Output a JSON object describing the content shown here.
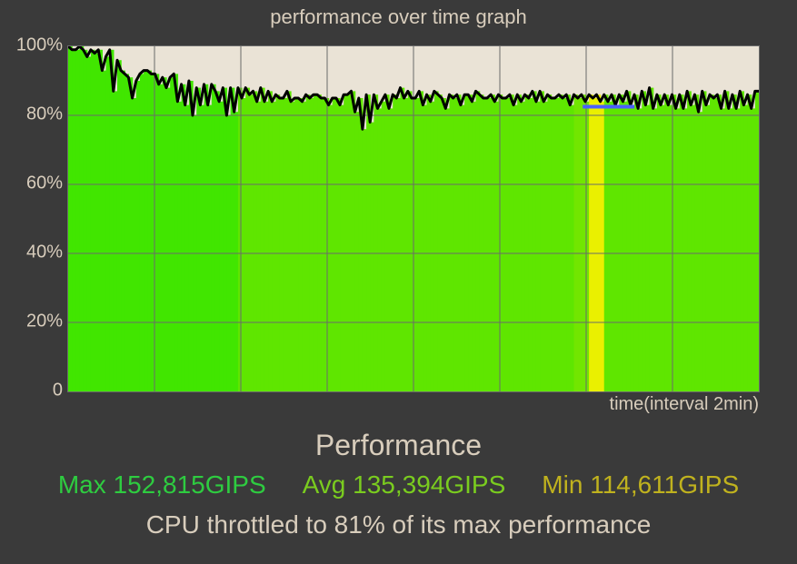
{
  "chart": {
    "type": "area-line",
    "title": "performance over time graph",
    "xaxis_label": "time(interval 2min)",
    "background_color": "#3a3a3a",
    "plot_bg_color": "#eae3d6",
    "grid_color": "#6b6b6b",
    "text_color": "#d8cdbc",
    "line_color": "#000000",
    "line_width": 3,
    "marker_color": "#4a5fff",
    "marker_width": 4,
    "ylim": [
      0,
      100
    ],
    "ytick_step": 20,
    "ytick_labels": [
      "0",
      "20%",
      "40%",
      "60%",
      "80%",
      "100%"
    ],
    "x_divisions": 8,
    "title_fontsize": 22,
    "axis_fontsize": 20,
    "series": [
      100,
      99,
      99,
      100,
      99,
      97,
      99,
      98,
      99,
      93,
      97,
      99,
      87,
      96,
      93,
      92,
      91,
      85,
      90,
      92,
      93,
      93,
      92,
      92,
      89,
      91,
      88,
      91,
      92,
      84,
      89,
      83,
      90,
      80,
      88,
      83,
      89,
      83,
      89,
      87,
      84,
      88,
      80,
      88,
      81,
      88,
      85,
      88,
      86,
      87,
      84,
      88,
      84,
      87,
      84,
      86,
      85,
      85,
      87,
      84,
      85,
      85,
      84,
      86,
      85,
      86,
      86,
      85,
      85,
      83,
      85,
      85,
      83,
      86,
      86,
      87,
      81,
      85,
      76,
      86,
      78,
      86,
      82,
      84,
      86,
      82,
      86,
      85,
      88,
      85,
      87,
      85,
      85,
      87,
      83,
      86,
      84,
      87,
      86,
      85,
      82,
      86,
      85,
      86,
      83,
      86,
      86,
      84,
      87,
      86,
      85,
      85,
      86,
      84,
      86,
      85,
      85,
      86,
      83,
      86,
      84,
      86,
      85,
      87,
      84,
      87,
      84,
      86,
      85,
      85,
      86,
      85,
      86,
      83,
      86,
      85,
      86,
      84,
      86,
      85,
      86,
      84,
      86,
      84,
      86,
      83,
      86,
      84,
      87,
      83,
      86,
      82,
      87,
      83,
      88,
      82,
      86,
      83,
      86,
      83,
      86,
      82,
      86,
      82,
      87,
      83,
      86,
      81,
      87,
      83,
      86,
      85,
      86,
      82,
      87,
      82,
      86,
      82,
      87,
      83,
      86,
      82,
      87,
      87
    ],
    "heat_bands": [
      {
        "from": 0,
        "to": 183,
        "color": "#41e600"
      },
      {
        "from": 183,
        "to": 553,
        "color": "#5fe600"
      },
      {
        "from": 553,
        "to": 570,
        "color": "#72e600"
      },
      {
        "from": 570,
        "to": 587,
        "color": "#eaf000"
      },
      {
        "from": 587,
        "to": 740,
        "color": "#5fe600"
      }
    ],
    "marker_line": {
      "y": 82.5,
      "x_from": 0.745,
      "x_to": 0.82
    }
  },
  "performance": {
    "heading": "Performance",
    "heading_fontsize": 32,
    "stats_fontsize": 28,
    "max_label": "Max 152,815GIPS",
    "avg_label": "Avg 135,394GIPS",
    "min_label": "Min 114,611GIPS",
    "max_color": "#2ecc40",
    "avg_color": "#7acc1f",
    "min_color": "#c0b21e",
    "throttle_text": "CPU throttled to 81% of its max performance"
  }
}
